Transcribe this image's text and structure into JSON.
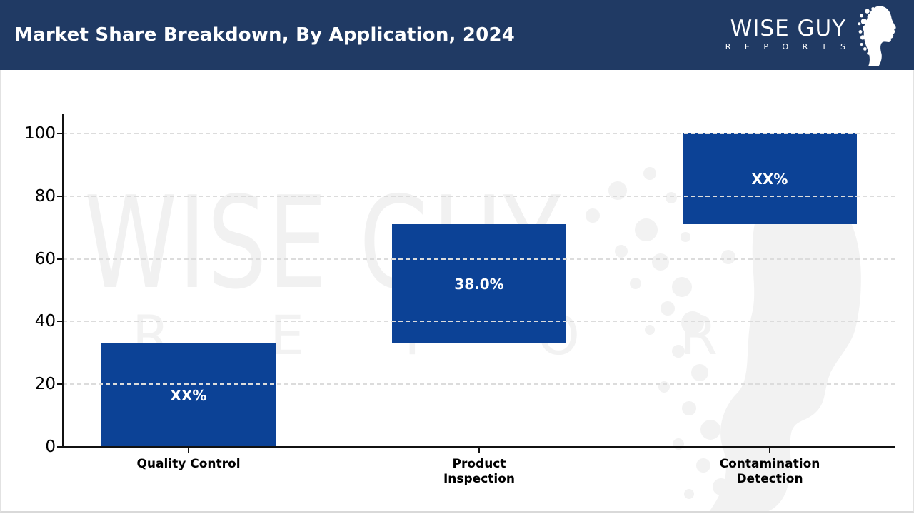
{
  "header": {
    "title": "Market Share Breakdown, By Application, 2024",
    "logo": {
      "line1": "WISE GUY",
      "line2": "REPORTS"
    }
  },
  "watermark": {
    "line1": "WISE GUY",
    "line2": "REPORTS"
  },
  "chart_data": {
    "type": "bar",
    "subtype": "floating-waterfall",
    "title": "Market Share Breakdown, By Application, 2024",
    "categories": [
      "Quality Control",
      "Product Inspection",
      "Contamination Detection"
    ],
    "series": [
      {
        "name": "Market Share",
        "segments": [
          {
            "category": "Quality Control",
            "start": 0,
            "end": 33,
            "label": "XX%"
          },
          {
            "category": "Product Inspection",
            "start": 33,
            "end": 71,
            "label": "38.0%"
          },
          {
            "category": "Contamination Detection",
            "start": 71,
            "end": 100,
            "label": "XX%"
          }
        ]
      }
    ],
    "yticks": [
      0,
      20,
      40,
      60,
      80,
      100
    ],
    "ylim": [
      0,
      106
    ],
    "grid": "horizontal-dashed",
    "legend": "none",
    "bar_color": "#0c4296",
    "bar_label_color": "#ffffff"
  },
  "colors": {
    "header_bg": "#203a64",
    "bar": "#0c4296",
    "grid": "#dcdcdc",
    "axis": "#111111",
    "watermark": "#f1f1f1"
  }
}
